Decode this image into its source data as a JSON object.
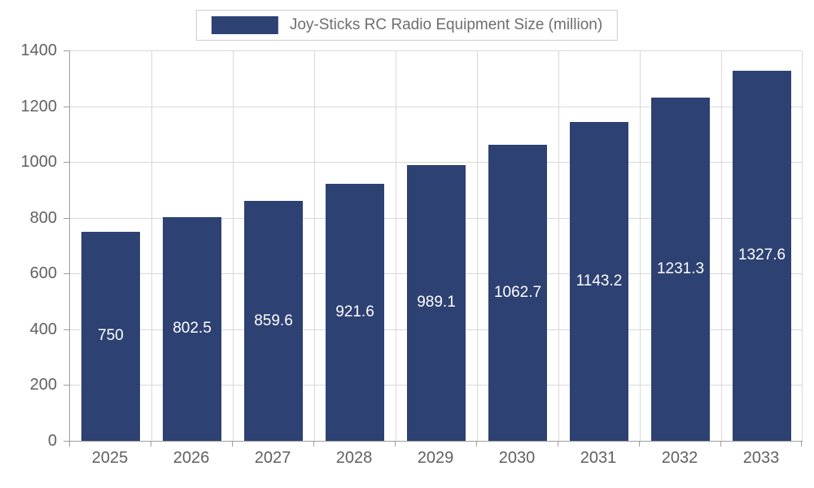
{
  "legend": {
    "label": "Joy-Sticks RC Radio Equipment Size (million)"
  },
  "colors": {
    "bar": "#2d4173",
    "grid": "#d9d9d9",
    "axis": "#9e9e9e",
    "tick_text": "#616161",
    "title_text": "#6e6e6e",
    "value_label": "#ffffff"
  },
  "chart_data": {
    "type": "bar",
    "title": "Joy-Sticks RC Radio Equipment Size (million)",
    "categories": [
      "2025",
      "2026",
      "2027",
      "2028",
      "2029",
      "2030",
      "2031",
      "2032",
      "2033"
    ],
    "values": [
      750,
      802.5,
      859.6,
      921.6,
      989.1,
      1062.7,
      1143.2,
      1231.3,
      1327.6
    ],
    "bar_labels": [
      "750",
      "802.5",
      "859.6",
      "921.6",
      "989.1",
      "1062.7",
      "1143.2",
      "1231.3",
      "1327.6"
    ],
    "xlabel": "",
    "ylabel": "",
    "ylim": [
      0,
      1400
    ],
    "ytick_step": 200,
    "yticks": [
      0,
      200,
      400,
      600,
      800,
      1000,
      1200,
      1400
    ],
    "grid": true,
    "legend_position": "top"
  }
}
